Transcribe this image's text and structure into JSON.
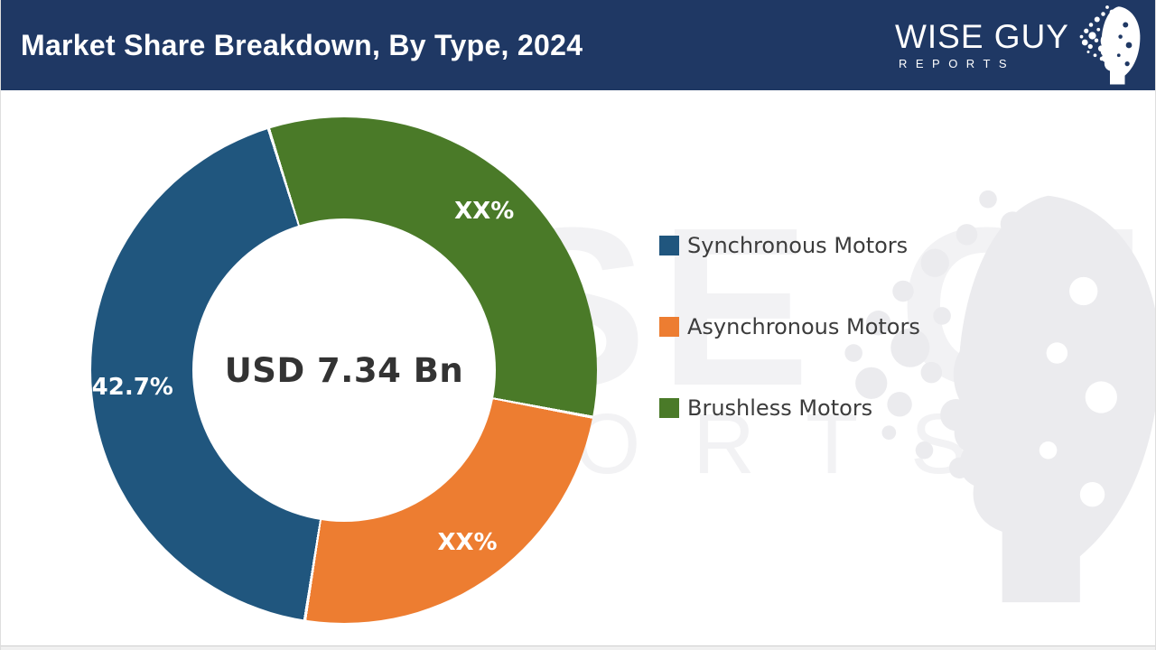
{
  "header": {
    "title": "Market Share Breakdown, By Type, 2024",
    "background_color": "#1f3864",
    "logo": {
      "line1": "WISE GUY",
      "line2": "REPORTS"
    }
  },
  "watermark": {
    "line1": "WISE GUY",
    "line2": "REPORTS",
    "color": "#f2f2f4"
  },
  "chart_data": {
    "type": "pie",
    "subtype": "donut",
    "title": "Market Share Breakdown, By Type, 2024",
    "center_label": "USD 7.34 Bn",
    "rotation_deg": -17.7,
    "hole_ratio": 0.6,
    "legend_position": "right",
    "segments": [
      {
        "name": "Brushless Motors",
        "label": "XX%",
        "value_pct": 32.8,
        "color": "#4a7a28"
      },
      {
        "name": "Asynchronous Motors",
        "label": "XX%",
        "value_pct": 24.5,
        "color": "#ed7d31"
      },
      {
        "name": "Synchronous Motors",
        "label": "42.7%",
        "value_pct": 42.7,
        "color": "#20567e"
      }
    ],
    "legend": [
      {
        "label": "Synchronous Motors",
        "color": "#20567e"
      },
      {
        "label": "Asynchronous Motors",
        "color": "#ed7d31"
      },
      {
        "label": "Brushless Motors",
        "color": "#4a7a28"
      }
    ]
  }
}
